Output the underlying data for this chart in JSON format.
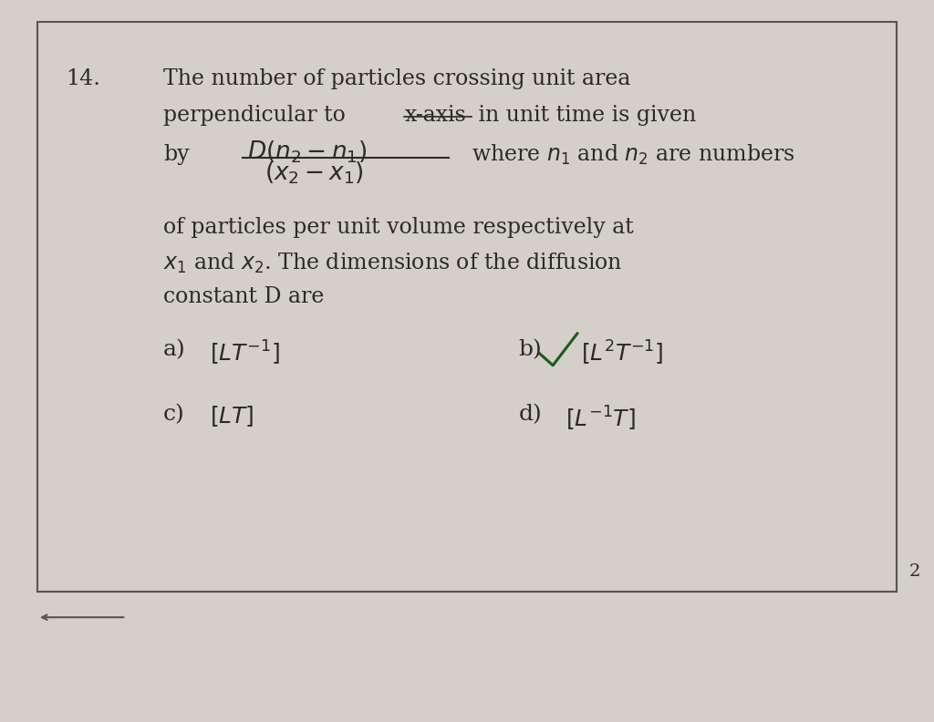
{
  "bg_color": "#d4cfc8",
  "text_color": "#2a2a2a",
  "border_color": "#555555",
  "question_number": "14.",
  "line1": "The number of particles crossing unit area",
  "line2_pre": "perpendicular to ",
  "line2_underlined": "x-axis",
  "line2_post": " in unit time is given",
  "by_text": "by",
  "where_text": "where n₁ and n₂ are numbers",
  "line4": "of particles per unit volume respectively at",
  "line5": "x₁ and x₂. The dimensions of the diffusion",
  "line6": "constant D are",
  "option_a_label": "a)",
  "option_b_label": "b)",
  "option_c_label": "c)",
  "option_c_val": "[LT]",
  "option_d_label": "d)",
  "checkmark_on": "b",
  "figure_width": 10.24,
  "figure_height": 7.92,
  "dpi": 100
}
